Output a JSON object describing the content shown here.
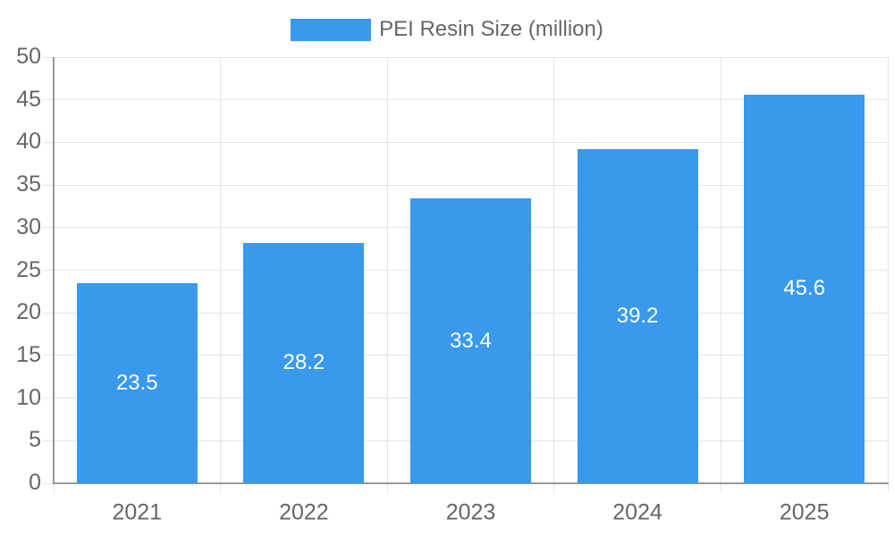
{
  "chart_data": {
    "type": "bar",
    "title": "PEI Resin Size (million)",
    "legend": {
      "label": "PEI Resin Size (million)",
      "position": "top"
    },
    "categories": [
      "2021",
      "2022",
      "2023",
      "2024",
      "2025"
    ],
    "series": [
      {
        "name": "PEI Resin Size (million)",
        "values": [
          23.5,
          28.2,
          33.4,
          39.2,
          45.6
        ]
      }
    ],
    "value_labels": [
      "23.5",
      "28.2",
      "33.4",
      "39.2",
      "45.6"
    ],
    "xlabel": "",
    "ylabel": "",
    "ylim": [
      0,
      50
    ],
    "ytick_step": 5,
    "yticks": [
      "0",
      "5",
      "10",
      "15",
      "20",
      "25",
      "30",
      "35",
      "40",
      "45",
      "50"
    ],
    "grid": "both",
    "legend_position": "top-center",
    "colors": {
      "bar": "#3999ED",
      "grid": "#E4E4E4",
      "axis": "#999999",
      "tick_text": "#666666",
      "value_label": "#FFFFFF",
      "background": "#FFFFFF"
    }
  }
}
